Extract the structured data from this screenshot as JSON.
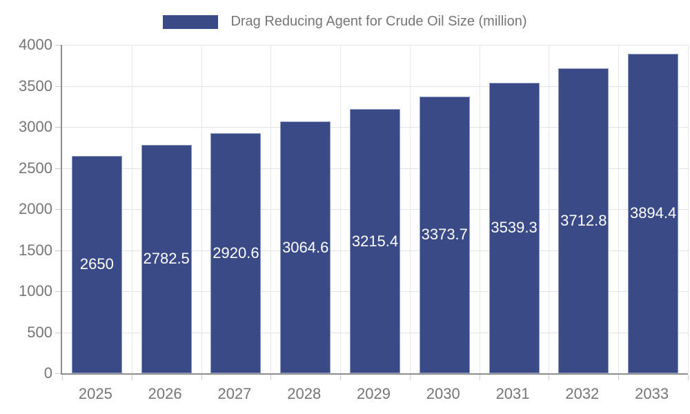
{
  "chart_data": {
    "type": "bar",
    "title": "Drag Reducing Agent for Crude Oil Size (million)",
    "legend": {
      "label": "Drag Reducing Agent for Crude Oil Size (million)",
      "position": "top-center"
    },
    "categories": [
      "2025",
      "2026",
      "2027",
      "2028",
      "2029",
      "2030",
      "2031",
      "2032",
      "2033"
    ],
    "series": [
      {
        "name": "Drag Reducing Agent for Crude Oil Size (million)",
        "values": [
          2650,
          2782.5,
          2920.6,
          3064.6,
          3215.4,
          3373.7,
          3539.3,
          3712.8,
          3894.4
        ]
      }
    ],
    "value_labels": [
      "2650",
      "2782.5",
      "2920.6",
      "3064.6",
      "3215.4",
      "3373.7",
      "3539.3",
      "3712.8",
      "3894.4"
    ],
    "xlabel": "",
    "ylabel": "",
    "ylim": [
      0,
      4000
    ],
    "ytick_labels": [
      "0",
      "500",
      "1000",
      "1500",
      "2000",
      "2500",
      "3000",
      "3500",
      "4000"
    ],
    "yticks": [
      0,
      500,
      1000,
      1500,
      2000,
      2500,
      3000,
      3500,
      4000
    ],
    "grid": true,
    "colors": {
      "bar_fill": "#3A4A87",
      "bar_border": "#8E9AC6",
      "value_label_text": "#FFFFFF",
      "axis_text": "#757575",
      "legend_text": "#757575",
      "grid_line": "#E2E2E2",
      "axis_line": "#8D8D8D"
    }
  }
}
